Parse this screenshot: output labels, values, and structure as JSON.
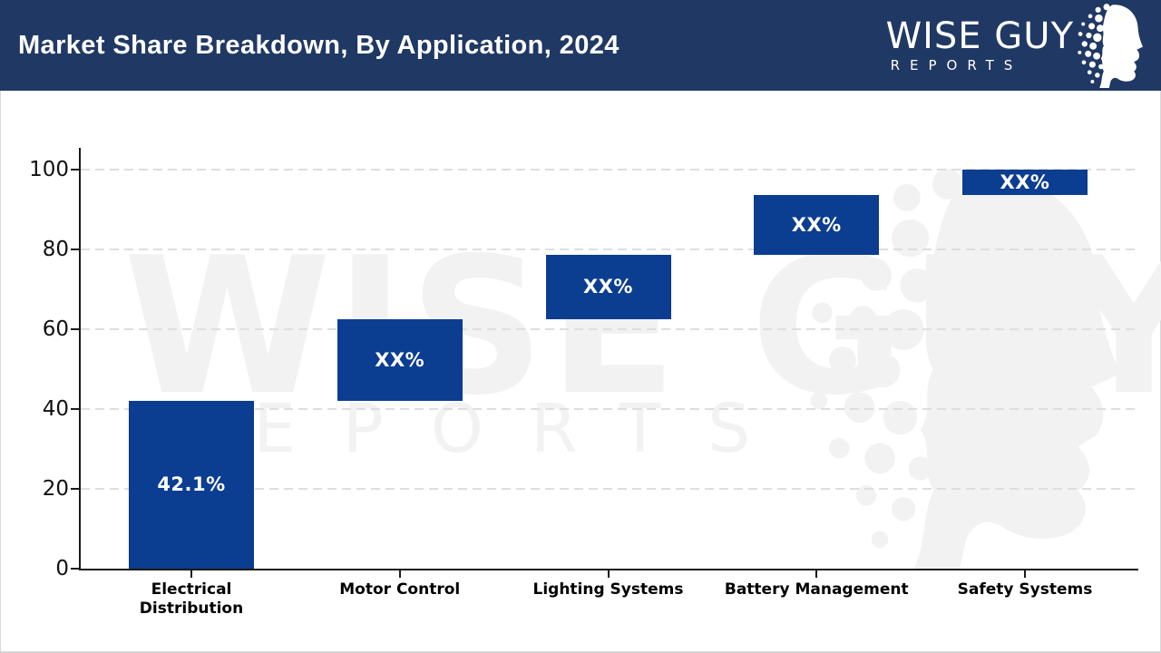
{
  "header": {
    "title": "Market Share Breakdown, By Application, 2024",
    "bg_color": "#203864",
    "logo": {
      "wordmark": "WISE GUY",
      "subtitle": "REPORTS"
    }
  },
  "watermark": {
    "wordmark": "WISE GUY",
    "subtitle": "REPORTS"
  },
  "chart_data": {
    "type": "bar",
    "subtype": "stepped-waterfall",
    "title": "Market Share Breakdown, By Application, 2024",
    "categories": [
      "Electrical\nDistribution",
      "Motor Control",
      "Lighting Systems",
      "Battery Management",
      "Safety Systems"
    ],
    "segments": [
      {
        "category": "Electrical Distribution",
        "label": "42.1%",
        "start": 0,
        "end": 42.1
      },
      {
        "category": "Motor Control",
        "label": "XX%",
        "start": 42.1,
        "end": 62.5
      },
      {
        "category": "Lighting Systems",
        "label": "XX%",
        "start": 62.5,
        "end": 78.7
      },
      {
        "category": "Battery Management",
        "label": "XX%",
        "start": 78.7,
        "end": 93.7
      },
      {
        "category": "Safety Systems",
        "label": "XX%",
        "start": 93.7,
        "end": 100
      }
    ],
    "yticks": [
      0,
      20,
      40,
      60,
      80,
      100
    ],
    "ylim": [
      0,
      105
    ],
    "xlabel": "",
    "ylabel": "",
    "legend": "none",
    "grid": "horizontal-dashed",
    "bar_color": "#0b3d91",
    "label_color": "#ffffff",
    "axis_color": "#1a1a1a"
  }
}
